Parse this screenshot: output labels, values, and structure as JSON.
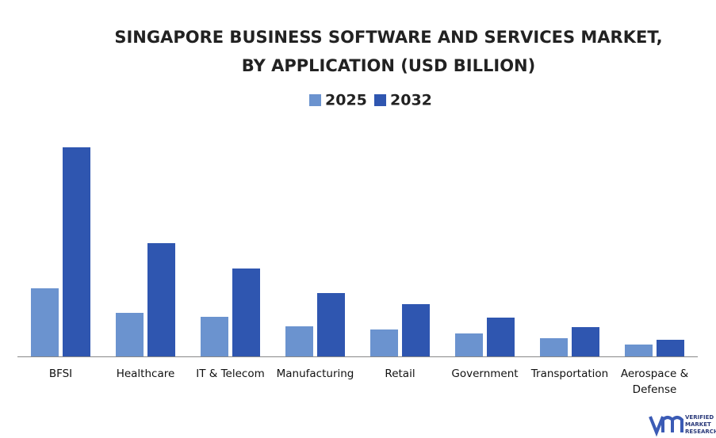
{
  "chart_data": {
    "type": "bar",
    "title": [
      "SINGAPORE BUSINESS SOFTWARE AND SERVICES MARKET,",
      "BY APPLICATION (USD BILLION)"
    ],
    "categories": [
      "BFSI",
      "Healthcare",
      "IT & Telecom",
      "Manufacturing",
      "Retail",
      "Government",
      "Transportation",
      "Aerospace & Defense"
    ],
    "series": [
      {
        "name": "2025",
        "color": "#6b93cf",
        "values": [
          0.86,
          0.55,
          0.5,
          0.38,
          0.34,
          0.29,
          0.23,
          0.15
        ]
      },
      {
        "name": "2032",
        "color": "#2f56b0",
        "values": [
          2.64,
          1.43,
          1.11,
          0.8,
          0.66,
          0.49,
          0.37,
          0.21
        ]
      }
    ],
    "ylim": [
      0,
      2.7
    ],
    "logo": [
      "VERIFIED",
      "MARKET",
      "RESEARCH"
    ]
  }
}
